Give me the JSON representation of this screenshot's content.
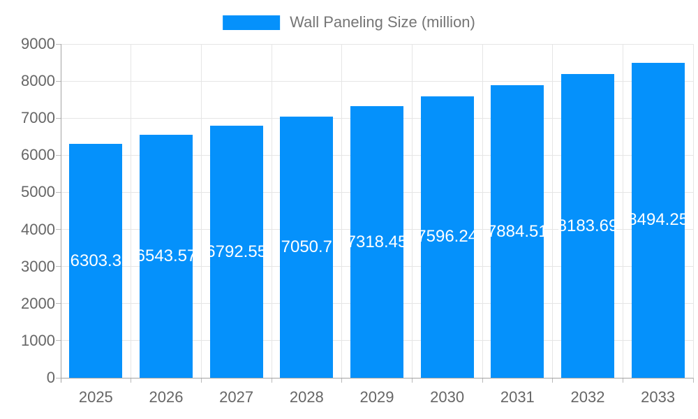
{
  "chart_data": {
    "type": "bar",
    "title": "",
    "xlabel": "",
    "ylabel": "",
    "categories": [
      "2025",
      "2026",
      "2027",
      "2028",
      "2029",
      "2030",
      "2031",
      "2032",
      "2033"
    ],
    "series": [
      {
        "name": "Wall Paneling Size (million)",
        "values": [
          6303.3,
          6543.57,
          6792.55,
          7050.7,
          7318.45,
          7596.24,
          7884.51,
          8183.69,
          8494.25
        ]
      }
    ],
    "y_ticks": [
      0,
      1000,
      2000,
      3000,
      4000,
      5000,
      6000,
      7000,
      8000,
      9000
    ],
    "ylim": [
      0,
      9000
    ],
    "grid": true,
    "legend_position": "top",
    "colors": {
      "bar": "#0591fb",
      "bar_label": "#ffffff",
      "gridline": "#e5e5e5",
      "axis_line": "#a3a3a3",
      "tick": "#b9b9b9",
      "axis_text": "#666666",
      "legend_text": "#757575",
      "background": "#ffffff"
    }
  }
}
